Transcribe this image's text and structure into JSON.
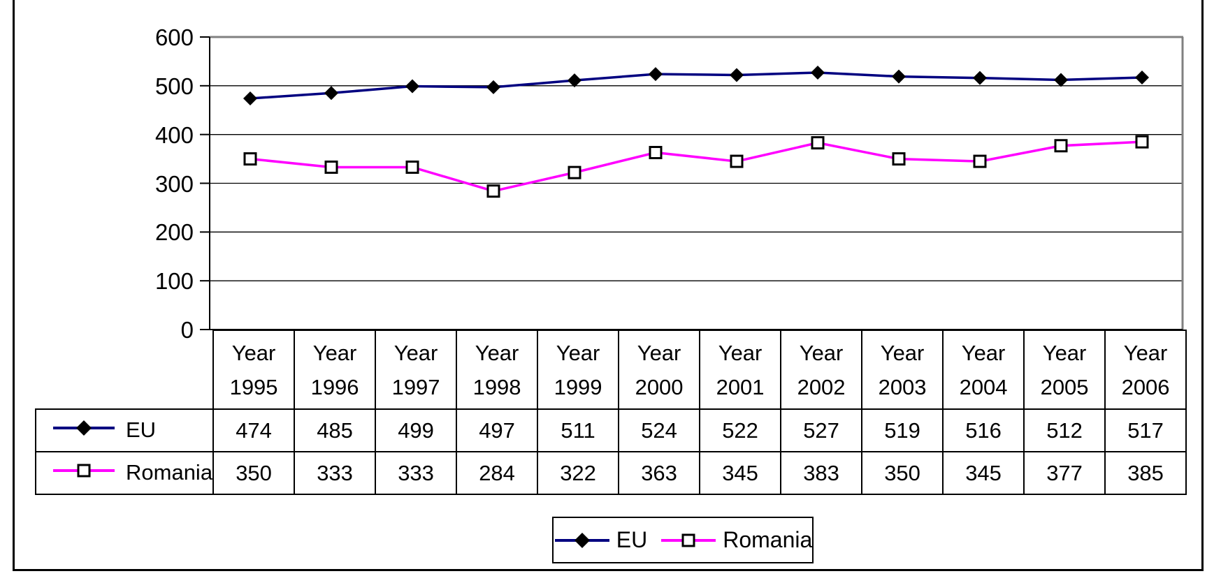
{
  "chart_data": {
    "type": "line",
    "categories": [
      "Year 1995",
      "Year 1996",
      "Year 1997",
      "Year 1998",
      "Year 1999",
      "Year 2000",
      "Year 2001",
      "Year 2002",
      "Year 2003",
      "Year 2004",
      "Year 2005",
      "Year 2006"
    ],
    "series": [
      {
        "name": "EU",
        "values": [
          474,
          485,
          499,
          497,
          511,
          524,
          522,
          527,
          519,
          516,
          512,
          517
        ],
        "line_color": "#000080",
        "marker": "filled-diamond",
        "marker_color": "#000000"
      },
      {
        "name": "Romania",
        "values": [
          350,
          333,
          333,
          284,
          322,
          363,
          345,
          383,
          350,
          345,
          377,
          385
        ],
        "line_color": "#FF00FF",
        "marker": "open-square",
        "marker_color": "#000000"
      }
    ],
    "title": "",
    "xlabel": "",
    "ylabel": "",
    "ylim": [
      0,
      600
    ],
    "ytick_interval": 100,
    "ytick_labels": [
      "600",
      "500",
      "400",
      "300",
      "200",
      "100",
      "0"
    ],
    "grid": true,
    "gridline_color": "#000000",
    "plot_border_color": "#808080",
    "axis_color": "#000000",
    "legend_position": "bottom-center",
    "legend_entries": [
      "EU",
      "Romania"
    ],
    "data_table_shown": true
  }
}
